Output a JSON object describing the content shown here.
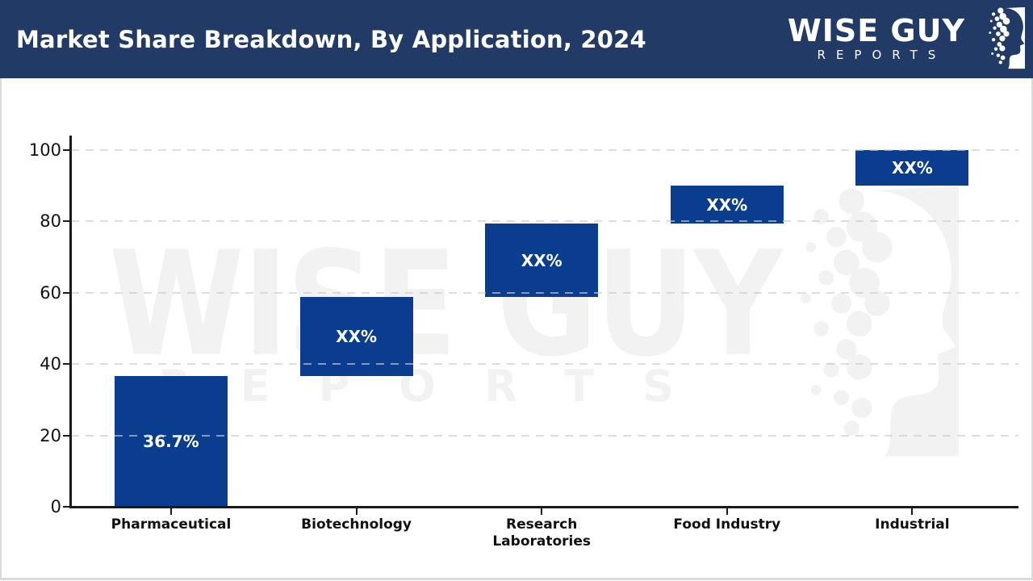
{
  "header": {
    "title": "Market Share Breakdown, By Application, 2024",
    "logo": {
      "line1": "WISE GUY",
      "line2": "REPORTS"
    }
  },
  "watermark": {
    "line1": "WISE GUY",
    "line2": "REPORTS"
  },
  "chart_data": {
    "type": "bar",
    "subtype": "waterfall",
    "title": "Market Share Breakdown, By Application, 2024",
    "categories": [
      "Pharmaceutical",
      "Biotechnology",
      "Research Laboratories",
      "Food Industry",
      "Industrial"
    ],
    "segments": [
      {
        "category": "Pharmaceutical",
        "start": 0,
        "end": 36.7,
        "label": "36.7%"
      },
      {
        "category": "Biotechnology",
        "start": 36.7,
        "end": 58.8,
        "label": "XX%"
      },
      {
        "category": "Research Laboratories",
        "start": 58.8,
        "end": 79.3,
        "label": "XX%"
      },
      {
        "category": "Food Industry",
        "start": 79.3,
        "end": 90.0,
        "label": "XX%"
      },
      {
        "category": "Industrial",
        "start": 90.0,
        "end": 100.0,
        "label": "XX%"
      }
    ],
    "yticks": [
      0,
      20,
      40,
      60,
      80,
      100
    ],
    "ylim": [
      0,
      105
    ],
    "xlabel": "",
    "ylabel": "",
    "grid": "horizontal-dashed",
    "legend": "none",
    "bar_color": "#0b3d8f",
    "bar_label_color": "#ffffff",
    "axis_color": "#1a1a1a"
  },
  "colors": {
    "header_bg": "#213a66",
    "watermark": "#f2f2f3",
    "frame": "#d9d9d9"
  }
}
